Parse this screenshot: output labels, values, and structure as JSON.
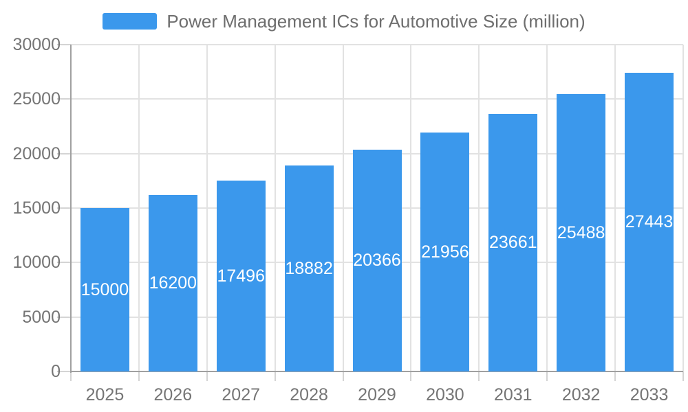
{
  "chart_data": {
    "type": "bar",
    "title": "Power Management ICs for Automotive Size (million)",
    "legend_entries": [
      "Power Management ICs for Automotive Size (million)"
    ],
    "legend_position": "top-center",
    "categories": [
      "2025",
      "2026",
      "2027",
      "2028",
      "2029",
      "2030",
      "2031",
      "2032",
      "2033"
    ],
    "series": [
      {
        "name": "Power Management ICs for Automotive Size (million)",
        "values": [
          15000,
          16200,
          17496,
          18882,
          20366,
          21956,
          23661,
          25488,
          27443
        ]
      }
    ],
    "value_labels_shown": true,
    "xlabel": "",
    "ylabel": "",
    "ylim": [
      0,
      30000
    ],
    "yticks": [
      0,
      5000,
      10000,
      15000,
      20000,
      25000,
      30000
    ],
    "grid": true,
    "colors": {
      "bar": "#3b98ec",
      "bar_value_label": "#ffffff",
      "axis_line": "#a0a0a0",
      "gridline": "#e2e2e2",
      "tick": "#d4d4d4",
      "axis_text": "#757575",
      "title_text": "#6e6e6e"
    }
  }
}
